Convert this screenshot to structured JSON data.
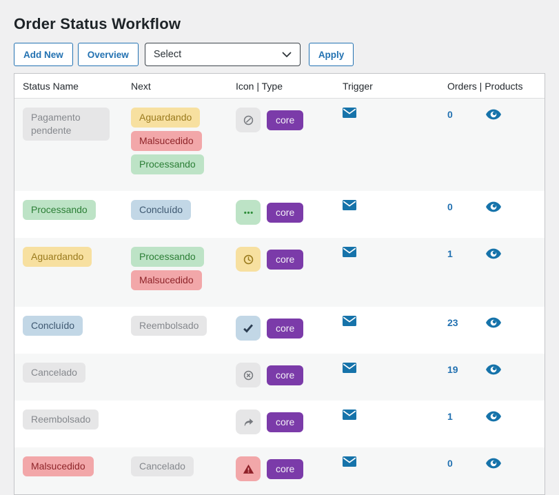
{
  "page": {
    "title": "Order Status Workflow"
  },
  "toolbar": {
    "add_new_label": "Add New",
    "overview_label": "Overview",
    "select_value": "Select",
    "apply_label": "Apply"
  },
  "colors": {
    "accent_blue": "#2271b1",
    "icon_blue": "#1673aa",
    "core_purple": "#7b3ba9",
    "badge_yellow_bg": "#f7e0a0",
    "badge_red_bg": "#f2a7a9",
    "badge_green_bg": "#bde3c6",
    "badge_blue_bg": "#c2d7e6",
    "badge_gray_bg": "#e6e6e7",
    "page_bg": "#f0f0f1"
  },
  "table": {
    "headers": [
      "Status Name",
      "Next",
      "Icon | Type",
      "Trigger",
      "Orders | Products"
    ],
    "trigger_icon": "email-envelope-icon",
    "products_icon": "eye-icon",
    "rows": [
      {
        "status": {
          "label": "Pagamento pendente",
          "variant": "gray"
        },
        "next": [
          {
            "label": "Aguardando",
            "variant": "yellow"
          },
          {
            "label": "Malsucedido",
            "variant": "red"
          },
          {
            "label": "Processando",
            "variant": "green"
          }
        ],
        "icon": {
          "name": "pending-icon",
          "variant": "gray"
        },
        "type": "core",
        "orders": "0"
      },
      {
        "status": {
          "label": "Processando",
          "variant": "green"
        },
        "next": [
          {
            "label": "Concluído",
            "variant": "blue"
          }
        ],
        "icon": {
          "name": "ellipsis-icon",
          "variant": "green"
        },
        "type": "core",
        "orders": "0"
      },
      {
        "status": {
          "label": "Aguardando",
          "variant": "yellow"
        },
        "next": [
          {
            "label": "Processando",
            "variant": "green"
          },
          {
            "label": "Malsucedido",
            "variant": "red"
          }
        ],
        "icon": {
          "name": "clock-icon",
          "variant": "yellow"
        },
        "type": "core",
        "orders": "1"
      },
      {
        "status": {
          "label": "Concluído",
          "variant": "blue"
        },
        "next": [
          {
            "label": "Reembolsado",
            "variant": "gray"
          }
        ],
        "icon": {
          "name": "check-icon",
          "variant": "blue"
        },
        "type": "core",
        "orders": "23"
      },
      {
        "status": {
          "label": "Cancelado",
          "variant": "gray"
        },
        "next": [],
        "icon": {
          "name": "cancel-circle-icon",
          "variant": "gray"
        },
        "type": "core",
        "orders": "19"
      },
      {
        "status": {
          "label": "Reembolsado",
          "variant": "gray"
        },
        "next": [],
        "icon": {
          "name": "redo-arrow-icon",
          "variant": "gray"
        },
        "type": "core",
        "orders": "1"
      },
      {
        "status": {
          "label": "Malsucedido",
          "variant": "red"
        },
        "next": [
          {
            "label": "Cancelado",
            "variant": "gray"
          }
        ],
        "icon": {
          "name": "warning-triangle-icon",
          "variant": "red"
        },
        "type": "core",
        "orders": "0"
      }
    ]
  }
}
